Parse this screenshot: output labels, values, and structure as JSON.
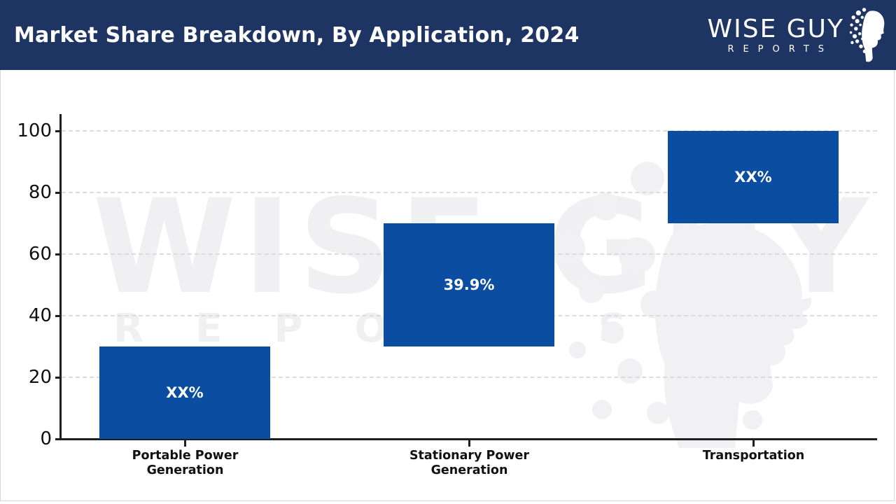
{
  "header": {
    "title": "Market Share Breakdown, By Application, 2024",
    "logo": {
      "line1": "WISE GUY",
      "line2": "REPORTS"
    }
  },
  "watermark": {
    "line1": "WISE GUY",
    "line2": "REPORTS"
  },
  "chart_data": {
    "type": "bar",
    "subtype": "waterfall-segments",
    "title": "Market Share Breakdown, By Application, 2024",
    "categories": [
      "Portable Power Generation",
      "Stationary Power Generation",
      "Transportation"
    ],
    "segments": [
      {
        "category": "Portable Power Generation",
        "start": 0,
        "end": 30,
        "label": "XX%"
      },
      {
        "category": "Stationary Power Generation",
        "start": 30,
        "end": 69.9,
        "label": "39.9%"
      },
      {
        "category": "Transportation",
        "start": 69.9,
        "end": 100,
        "label": "XX%"
      }
    ],
    "xlabel": "",
    "ylabel": "",
    "ylim": [
      0,
      100
    ],
    "yticks": [
      0,
      20,
      40,
      60,
      80,
      100
    ],
    "grid": "horizontal-dashed",
    "legend": "none",
    "bar_color": "#0b4da0",
    "bar_label_color": "#ffffff"
  },
  "colors": {
    "header_bg": "#1e3563",
    "axis": "#1f1f1f",
    "gridline": "#dcdcdc",
    "watermark": "#f0f0f2",
    "frame_border": "#d8d8d8"
  }
}
